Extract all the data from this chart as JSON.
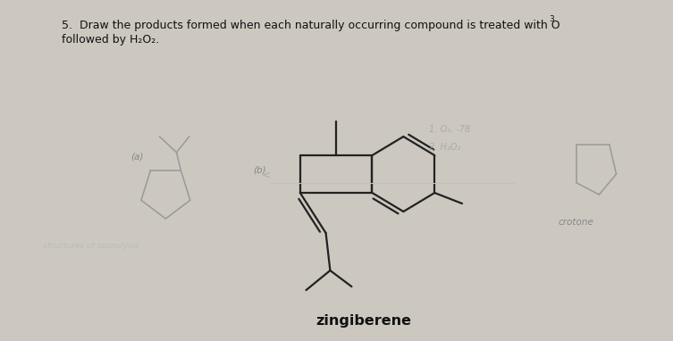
{
  "background_color": "#ccc8c0",
  "title_line1": "5.  Draw the products formed when each naturally occurring compound is treated with O",
  "title_sub3": "3",
  "title_line2": "followed by H₂O₂.",
  "label_zingiberene": "zingiberene",
  "fig_width": 7.53,
  "fig_height": 3.82,
  "dpi": 100,
  "line_color": "#222222",
  "ghost_color": "#999999",
  "lw_main": 1.6,
  "lw_ghost": 1.1
}
